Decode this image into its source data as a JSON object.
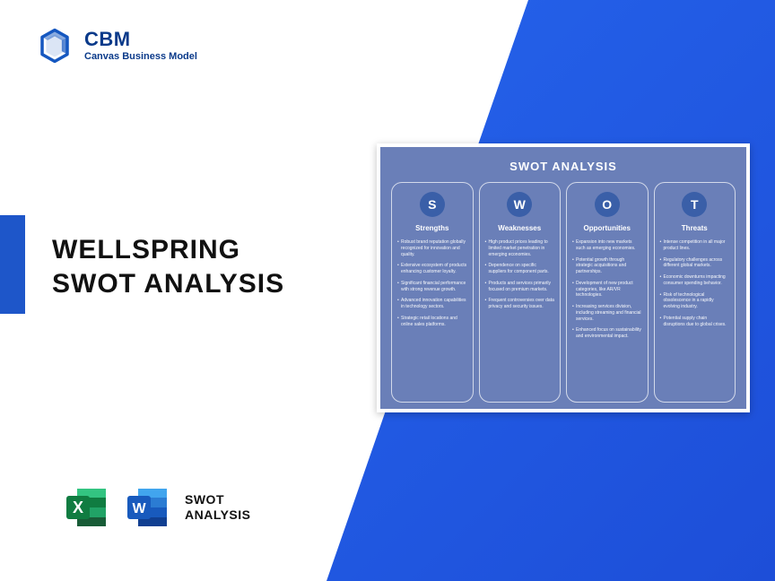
{
  "brand": {
    "title": "CBM",
    "subtitle": "Canvas Business Model",
    "logo_color": "#1557c0"
  },
  "main": {
    "line1": "WELLSPRING",
    "line2": "SWOT ANALYSIS"
  },
  "file_label": {
    "line1": "SWOT",
    "line2": "ANALYSIS"
  },
  "excel_icon": {
    "bg": "#107c41",
    "letter": "X"
  },
  "word_icon": {
    "bg": "#185abd",
    "letter": "W"
  },
  "swot": {
    "title": "SWOT ANALYSIS",
    "panel_bg": "#6a7fb8",
    "circle_bg": "#3a5fa8",
    "columns": [
      {
        "letter": "S",
        "title": "Strengths",
        "items": [
          "Robust brand reputation globally recognized for innovation and quality.",
          "Extensive ecosystem of products enhancing customer loyalty.",
          "Significant financial performance with strong revenue growth.",
          "Advanced innovation capabilities in technology sectors.",
          "Strategic retail locations and online sales platforms."
        ]
      },
      {
        "letter": "W",
        "title": "Weaknesses",
        "items": [
          "High product prices leading to limited market penetration in emerging economies.",
          "Dependence on specific suppliers for component parts.",
          "Products and services primarily focused on premium markets.",
          "Frequent controversies over data privacy and security issues."
        ]
      },
      {
        "letter": "O",
        "title": "Opportunities",
        "items": [
          "Expansion into new markets such as emerging economies.",
          "Potential growth through strategic acquisitions and partnerships.",
          "Development of new product categories, like AR/VR technologies.",
          "Increasing services division, including streaming and financial services.",
          "Enhanced focus on sustainability and environmental impact."
        ]
      },
      {
        "letter": "T",
        "title": "Threats",
        "items": [
          "Intense competition in all major product lines.",
          "Regulatory challenges across different global markets.",
          "Economic downturns impacting consumer spending behavior.",
          "Risk of technological obsolescence in a rapidly evolving industry.",
          "Potential supply chain disruptions due to global crises."
        ]
      }
    ]
  },
  "colors": {
    "diagonal_start": "#2563eb",
    "diagonal_end": "#1d4ed8",
    "accent_bar": "#1e56c9"
  }
}
